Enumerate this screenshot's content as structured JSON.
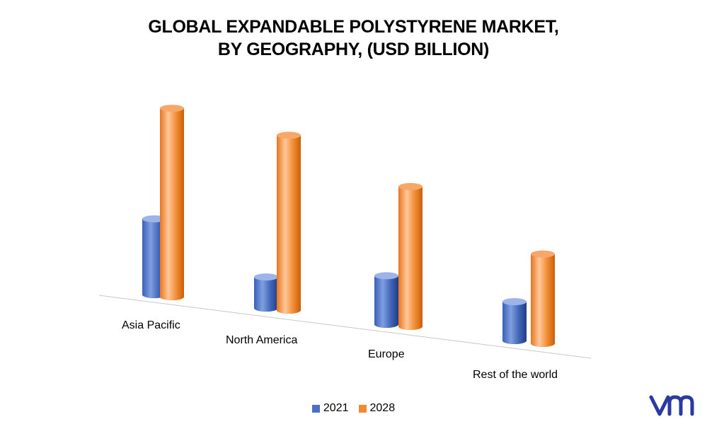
{
  "title": {
    "line1": "GLOBAL EXPANDABLE POLYSTYRENE MARKET,",
    "line2": "BY GEOGRAPHY, (USD BILLION)"
  },
  "colors": {
    "series_2021": "#4a6fc3",
    "series_2028": "#f0892f"
  },
  "chart_data": {
    "type": "bar",
    "style": "3d-cylinder",
    "categories": [
      "Asia Pacific",
      "North America",
      "Europe",
      "Rest of the world"
    ],
    "series": [
      {
        "name": "2021",
        "values": [
          3.9,
          1.6,
          2.5,
          2.0
        ]
      },
      {
        "name": "2028",
        "values": [
          9.7,
          9.0,
          7.2,
          4.6
        ]
      }
    ],
    "ylim": [
      0,
      10
    ],
    "grid": false,
    "legend_position": "bottom"
  },
  "legend": {
    "item1": "2021",
    "item2": "2028"
  }
}
